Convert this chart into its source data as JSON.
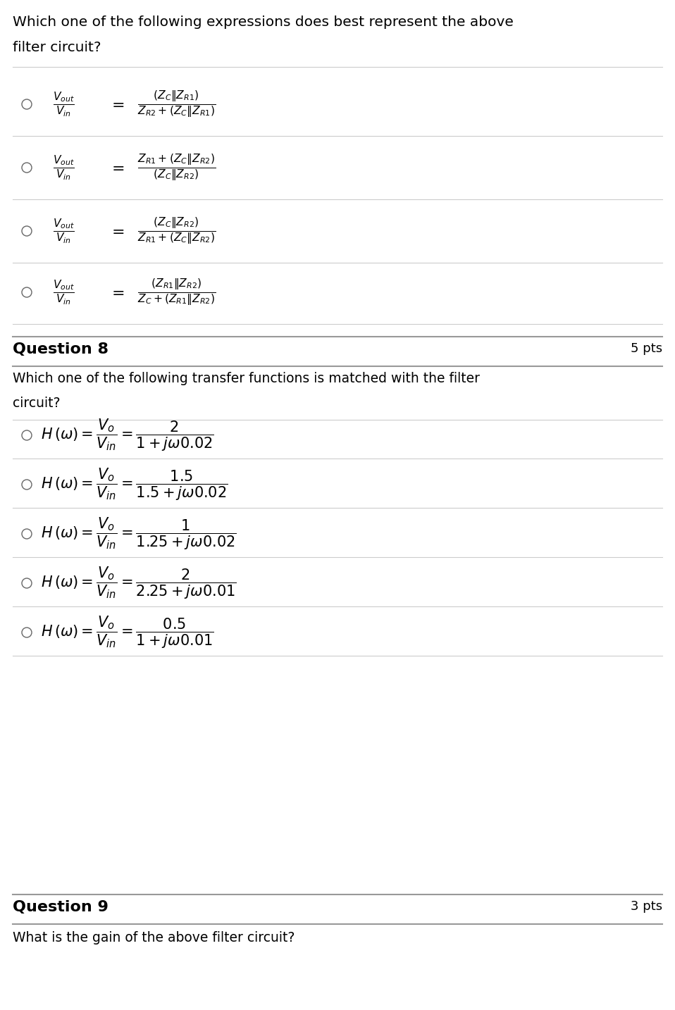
{
  "bg_color": "#ffffff",
  "figsize": [
    9.58,
    14.34
  ],
  "dpi": 100,
  "q7_header": "Which one of the following expressions does best represent the above\nfilter circuit?",
  "q7_options": [
    {
      "lhs": "$\\frac{V_{out}}{V_{in}}$",
      "eq": "$=$",
      "rhs": "$\\frac{(Z_C\\|Z_{R1})}{Z_{R2}+(Z_C\\|Z_{R1})}$"
    },
    {
      "lhs": "$\\frac{V_{out}}{V_{in}}$",
      "eq": "$=$",
      "rhs": "$\\frac{Z_{R1}+(Z_C\\|Z_{R2})}{(Z_C\\|Z_{R2})}$"
    },
    {
      "lhs": "$\\frac{V_{out}}{V_{in}}$",
      "eq": "$=$",
      "rhs": "$\\frac{(Z_C\\|Z_{R2})}{Z_{R1}+(Z_C\\|Z_{R2})}$"
    },
    {
      "lhs": "$\\frac{V_{out}}{V_{in}}$",
      "eq": "$=$",
      "rhs": "$\\frac{(Z_{R1}\\|Z_{R2})}{Z_C+(Z_{R1}\\|Z_{R2})}$"
    }
  ],
  "q8_header": "Question 8",
  "q8_pts": "5 pts",
  "q8_text": "Which one of the following transfer functions is matched with the filter\ncircuit?",
  "q8_options": [
    "$H\\,(\\omega) = \\dfrac{V_o}{V_{in}} = \\dfrac{2}{1+j\\omega 0.02}$",
    "$H\\,(\\omega) = \\dfrac{V_o}{V_{in}} = \\dfrac{1.5}{1.5+j\\omega 0.02}$",
    "$H\\,(\\omega) = \\dfrac{V_o}{V_{in}} = \\dfrac{1}{1.25+j\\omega 0.02}$",
    "$H\\,(\\omega) = \\dfrac{V_o}{V_{in}} = \\dfrac{2}{2.25+j\\omega 0.01}$",
    "$H\\,(\\omega) = \\dfrac{V_o}{V_{in}} = \\dfrac{0.5}{1+j\\omega 0.01}$"
  ],
  "q9_header": "Question 9",
  "q9_pts": "3 pts",
  "q9_text": "What is the gain of the above filter circuit?"
}
